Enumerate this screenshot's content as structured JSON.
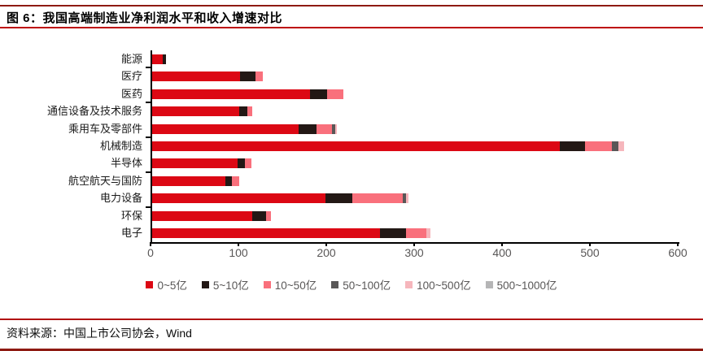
{
  "header": {
    "title": "图 6：我国高端制造业净利润水平和收入增速对比"
  },
  "footer": {
    "source": "资料来源：中国上市公司协会，Wind"
  },
  "colors": {
    "rule_dark_red": "#8e1a12",
    "rule_bright_red": "#bd0808",
    "axis": "#000000",
    "tick_label": "#595757",
    "category_label": "#1a1a1a"
  },
  "chart_data": {
    "type": "bar",
    "orientation": "horizontal",
    "stacked": true,
    "title": "图 6：我国高端制造业净利润水平和收入增速对比",
    "xlabel": "",
    "ylabel": "",
    "xlim": [
      0,
      600
    ],
    "xticks": [
      0,
      100,
      200,
      300,
      400,
      500,
      600
    ],
    "grid": false,
    "legend_position": "bottom",
    "categories": [
      "能源",
      "医疗",
      "医药",
      "通信设备及技术服务",
      "乘用车及零部件",
      "机械制造",
      "半导体",
      "航空航天与国防",
      "电力设备",
      "环保",
      "电子"
    ],
    "series": [
      {
        "name": "0~5亿",
        "color": "#dc0814",
        "values": [
          12,
          100,
          180,
          99,
          167,
          464,
          97,
          83,
          197,
          114,
          259
        ]
      },
      {
        "name": "5~10亿",
        "color": "#231815",
        "values": [
          4,
          18,
          19,
          9,
          20,
          29,
          9,
          8,
          31,
          16,
          30
        ]
      },
      {
        "name": "10~50亿",
        "color": "#f9707c",
        "values": [
          0,
          8,
          19,
          6,
          18,
          30,
          7,
          8,
          57,
          5,
          23
        ]
      },
      {
        "name": "50~100亿",
        "color": "#595757",
        "values": [
          0,
          0,
          0,
          0,
          3,
          8,
          0,
          0,
          4,
          0,
          0
        ]
      },
      {
        "name": "100~500亿",
        "color": "#f6b6bc",
        "values": [
          0,
          0,
          0,
          0,
          2,
          6,
          0,
          0,
          3,
          0,
          5
        ]
      },
      {
        "name": "500~1000亿",
        "color": "#b5b5b6",
        "values": [
          0,
          0,
          0,
          0,
          0,
          0,
          0,
          0,
          0,
          0,
          0
        ]
      }
    ]
  }
}
